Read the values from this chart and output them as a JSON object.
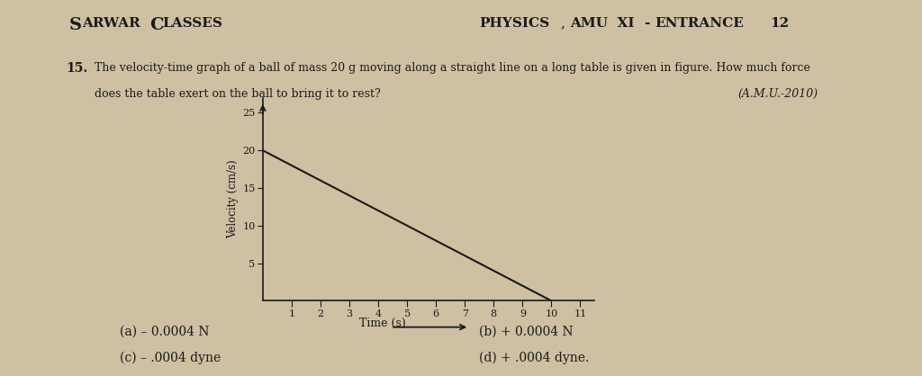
{
  "line_x": [
    0,
    10
  ],
  "line_y": [
    20,
    0
  ],
  "x_ticks": [
    1,
    2,
    3,
    4,
    5,
    6,
    7,
    8,
    9,
    10,
    11
  ],
  "y_ticks": [
    5,
    10,
    15,
    20,
    25
  ],
  "xlabel": "Time (s)",
  "ylabel": "Velocity (cm/s)",
  "xlim": [
    0,
    11.5
  ],
  "ylim": [
    0,
    27
  ],
  "options": [
    "(a) – 0.0004 N",
    "(b) + 0.0004 N",
    "(c) – .0004 dyne",
    "(d) + .0004 dyne."
  ],
  "background_color": "#cfc0a3",
  "line_color": "#1a1a1a",
  "axes_color": "#1a1a1a",
  "text_color": "#1a1a1a"
}
